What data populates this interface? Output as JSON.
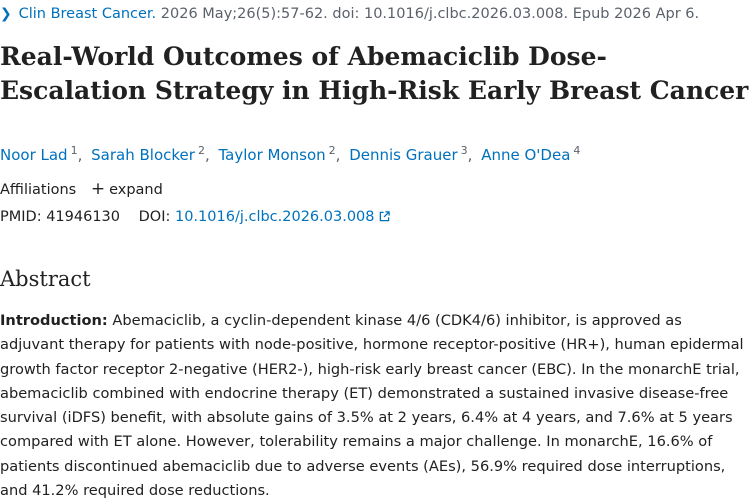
{
  "citation": {
    "journal": "Clin Breast Cancer.",
    "details": "2026 May;26(5):57-62. doi: 10.1016/j.clbc.2026.03.008. Epub 2026 Apr 6."
  },
  "article": {
    "title": "Real-World Outcomes of Abemaciclib Dose-Escalation Strategy in High-Risk Early Breast Cancer",
    "authors": [
      {
        "name": "Noor Lad",
        "aff": "1"
      },
      {
        "name": "Sarah Blocker",
        "aff": "2"
      },
      {
        "name": "Taylor Monson",
        "aff": "2"
      },
      {
        "name": "Dennis Grauer",
        "aff": "3"
      },
      {
        "name": "Anne O'Dea",
        "aff": "4"
      }
    ],
    "separator": ",",
    "affiliations_label": "Affiliations",
    "expand_label": "expand",
    "pmid_label": "PMID:",
    "pmid": "41946130",
    "doi_label": "DOI:",
    "doi": "10.1016/j.clbc.2026.03.008"
  },
  "abstract": {
    "heading": "Abstract",
    "intro_label": "Introduction:",
    "intro_text": " Abemaciclib, a cyclin-dependent kinase 4/6 (CDK4/6) inhibitor, is approved as adjuvant therapy for patients with node-positive, hormone receptor-positive (HR+), human epidermal growth factor receptor 2-negative (HER2-), high-risk early breast cancer (EBC). In the monarchE trial, abemaciclib combined with endocrine therapy (ET) demonstrated a sustained invasive disease-free survival (iDFS) benefit, with absolute gains of 3.5% at 2 years, 6.4% at 4 years, and 7.6% at 5 years compared with ET alone. However, tolerability remains a major challenge. In monarchE, 16.6% of patients discontinued abemaciclib due to adverse events (AEs), 56.9% required dose interruptions, and 41.2% required dose reductions."
  },
  "icons": {
    "chevron": "chevron-right-icon",
    "plus": "plus-icon",
    "external_link": "external-link-icon"
  },
  "colors": {
    "link": "#0071bc",
    "text": "#212121",
    "muted": "#5b616b"
  }
}
